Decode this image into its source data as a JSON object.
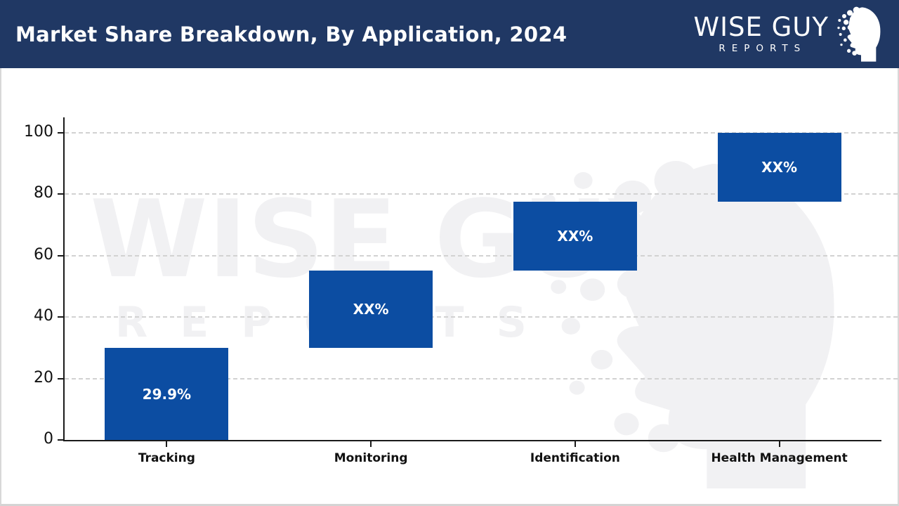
{
  "header": {
    "title": "Market Share Breakdown, By Application, 2024",
    "bg_color": "#203864",
    "logo": {
      "line1": "WISE GUY",
      "line2": "REPORTS"
    }
  },
  "watermark": {
    "line1": "WISE GUY",
    "line2": "REPORTS"
  },
  "chart_data": {
    "type": "bar",
    "subtype": "waterfall",
    "title": "Market Share Breakdown, By Application, 2024",
    "categories": [
      "Tracking",
      "Monitoring",
      "Identification",
      "Health Management"
    ],
    "segments": [
      {
        "category": "Tracking",
        "start": 0,
        "end": 29.9,
        "label": "29.9%"
      },
      {
        "category": "Monitoring",
        "start": 29.9,
        "end": 55,
        "label": "XX%"
      },
      {
        "category": "Identification",
        "start": 55,
        "end": 77.5,
        "label": "XX%"
      },
      {
        "category": "Health Management",
        "start": 77.5,
        "end": 100,
        "label": "XX%"
      }
    ],
    "y_ticks": [
      0,
      20,
      40,
      60,
      80,
      100
    ],
    "ylim": [
      0,
      105
    ],
    "grid": "dashed-horizontal",
    "legend": "none",
    "xlabel": "",
    "ylabel": "",
    "bar_color": "#0c4da2",
    "bar_label_color": "#ffffff",
    "axis_color": "#1a1a1a",
    "grid_color": "#d2d2d2",
    "watermark_color": "#f1f1f3"
  }
}
